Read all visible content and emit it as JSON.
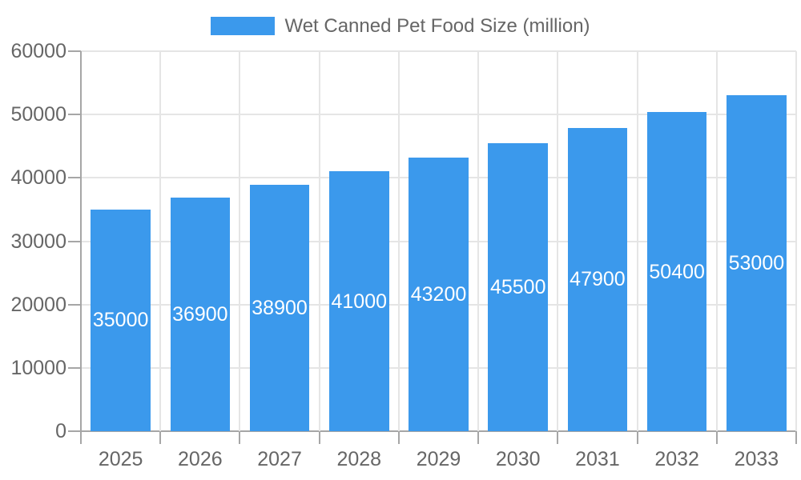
{
  "legend": {
    "label": "Wet Canned Pet Food Size (million)"
  },
  "chart_data": {
    "type": "bar",
    "title": "",
    "xlabel": "",
    "ylabel": "",
    "series_name": "Wet Canned Pet Food Size (million)",
    "categories": [
      "2025",
      "2026",
      "2027",
      "2028",
      "2029",
      "2030",
      "2031",
      "2032",
      "2033"
    ],
    "values": [
      35000,
      36900,
      38900,
      41000,
      43200,
      45500,
      47900,
      50400,
      53000
    ],
    "bar_value_labels": [
      "35000",
      "36900",
      "38900",
      "41000",
      "43200",
      "45500",
      "47900",
      "50400",
      "53000"
    ],
    "ylim": [
      0,
      60000
    ],
    "yticks": [
      0,
      10000,
      20000,
      30000,
      40000,
      50000,
      60000
    ],
    "ytick_labels": [
      "0",
      "10000",
      "20000",
      "30000",
      "40000",
      "50000",
      "60000"
    ],
    "grid": true,
    "legend_position": "top-center",
    "colors": {
      "bar": "#3B99EC",
      "grid": "#E5E5E5",
      "axis": "#A6A6A6",
      "tick_text": "#666666",
      "legend_text": "#666666",
      "bar_label_text": "#FFFFFF",
      "background": "#FFFFFF"
    }
  }
}
